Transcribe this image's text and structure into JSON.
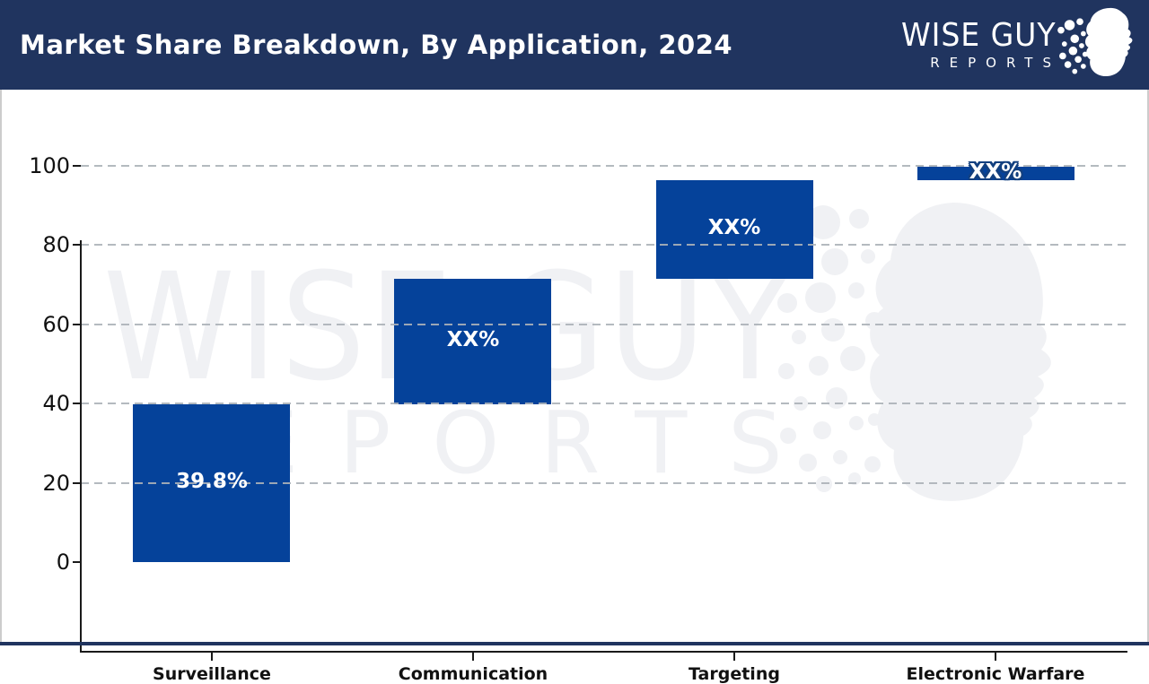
{
  "header": {
    "title": "Market Share Breakdown, By Application, 2024",
    "logo": {
      "line1": "WISE GUY",
      "line2": "REPORTS"
    }
  },
  "watermark": {
    "line1": "WISE GUY",
    "line2": "REPORTS"
  },
  "colors": {
    "header_bg": "#20345f",
    "bar": "#05429a",
    "axis": "#1a1a1a",
    "grid": "#c6cacd",
    "watermark": "#f0f1f4",
    "bar_label": "#ffffff",
    "tick_label": "#111111"
  },
  "chart_data": {
    "type": "bar",
    "subtype": "waterfall",
    "title": "Market Share Breakdown, By Application, 2024",
    "categories": [
      "Surveillance",
      "Communication",
      "Targeting",
      "Electronic Warfare"
    ],
    "segments": [
      {
        "category": "Surveillance",
        "start": 0,
        "end": 39.8,
        "label": "39.8%"
      },
      {
        "category": "Communication",
        "start": 39.8,
        "end": 71.6,
        "label": "XX%"
      },
      {
        "category": "Targeting",
        "start": 71.6,
        "end": 96.4,
        "label": "XX%"
      },
      {
        "category": "Electronic Warfare",
        "start": 96.4,
        "end": 99.8,
        "label": "XX%"
      }
    ],
    "yticks": [
      0,
      20,
      40,
      60,
      80,
      100
    ],
    "ylim": [
      0,
      104
    ],
    "xlabel": "",
    "ylabel": "",
    "grid": "dashed-horizontal",
    "legend": "none",
    "bar_color": "#05429a",
    "value_labels_position": "center"
  }
}
